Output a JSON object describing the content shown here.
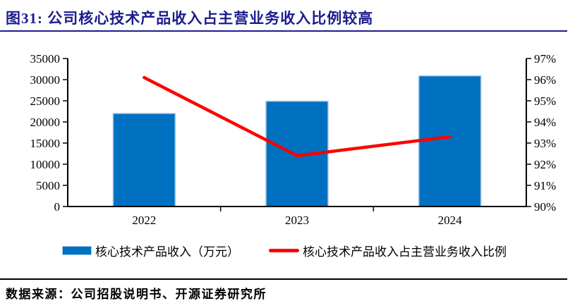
{
  "title": "图31:  公司核心技术产品收入占主营业务收入比例较高",
  "source": "数据来源：公司招股说明书、开源证券研究所",
  "colors": {
    "title_text": "#1c1c8f",
    "top_rule": "#1c1c8f",
    "bottom_rule": "#000000",
    "bar_fill": "#0070C0",
    "bar_border": "#A8C6E8",
    "line_stroke": "#FE0000",
    "axis": "#000000"
  },
  "chart_data": {
    "type": "bar+line",
    "title": "公司核心技术产品收入占主营业务收入比例较高",
    "categories": [
      "2022",
      "2023",
      "2024"
    ],
    "series": [
      {
        "name": "核心技术产品收入（万元）",
        "type": "bar",
        "axis": "left",
        "color": "#0070C0",
        "values": [
          22000,
          24900,
          30900
        ]
      },
      {
        "name": "核心技术产品收入占主营业务收入比例",
        "type": "line",
        "axis": "right",
        "unit": "%",
        "color": "#FE0000",
        "values": [
          96.1,
          92.4,
          93.3
        ]
      }
    ],
    "left_axis": {
      "min": 0,
      "max": 35000,
      "step": 5000,
      "tick_labels": [
        "0",
        "5000",
        "10000",
        "15000",
        "20000",
        "25000",
        "30000",
        "35000"
      ]
    },
    "right_axis": {
      "min": 90,
      "max": 97,
      "step": 1,
      "tick_labels": [
        "90%",
        "91%",
        "92%",
        "93%",
        "94%",
        "95%",
        "96%",
        "97%"
      ]
    },
    "grid": false,
    "legend_position": "bottom"
  }
}
